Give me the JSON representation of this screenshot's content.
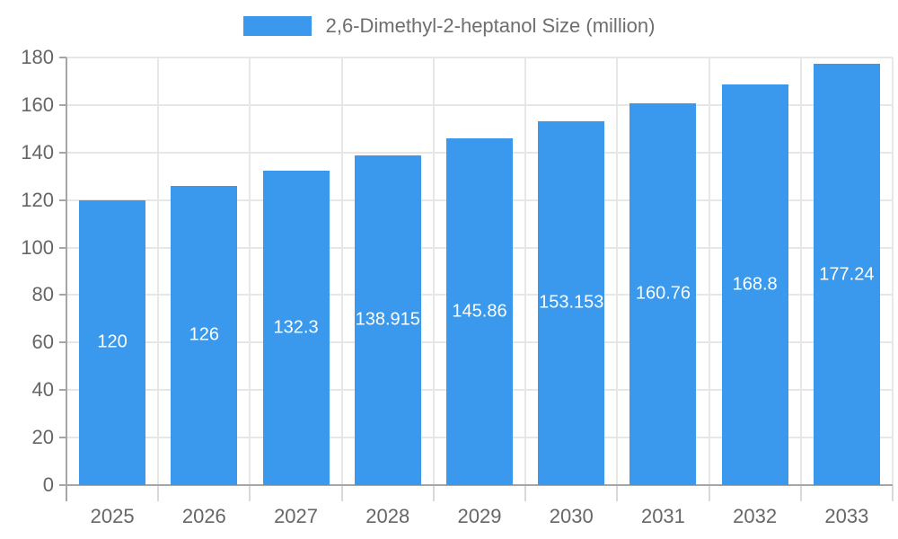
{
  "chart_data": {
    "type": "bar",
    "title": "2,6-Dimethyl-2-heptanol Size (million)",
    "categories": [
      "2025",
      "2026",
      "2027",
      "2028",
      "2029",
      "2030",
      "2031",
      "2032",
      "2033"
    ],
    "values": [
      120,
      126,
      132.3,
      138.915,
      145.86,
      153.153,
      160.76,
      168.8,
      177.24
    ],
    "bar_labels": [
      "120",
      "126",
      "132.3",
      "138.915",
      "145.86",
      "153.153",
      "160.76",
      "168.8",
      "177.24"
    ],
    "xlabel": "",
    "ylabel": "",
    "ylim": [
      0,
      180
    ],
    "yticks": [
      0,
      20,
      40,
      60,
      80,
      100,
      120,
      140,
      160,
      180
    ],
    "grid": true,
    "legend_position": "top",
    "colors": {
      "bar": "#3a99ec",
      "bar_label": "#ffffff",
      "grid": "#e7e7e7",
      "axis": "#a6a6a6",
      "x_tick": "#d9d9d9",
      "tick_label": "#666666",
      "legend_text": "#6e6e6e",
      "background": "#ffffff"
    }
  }
}
